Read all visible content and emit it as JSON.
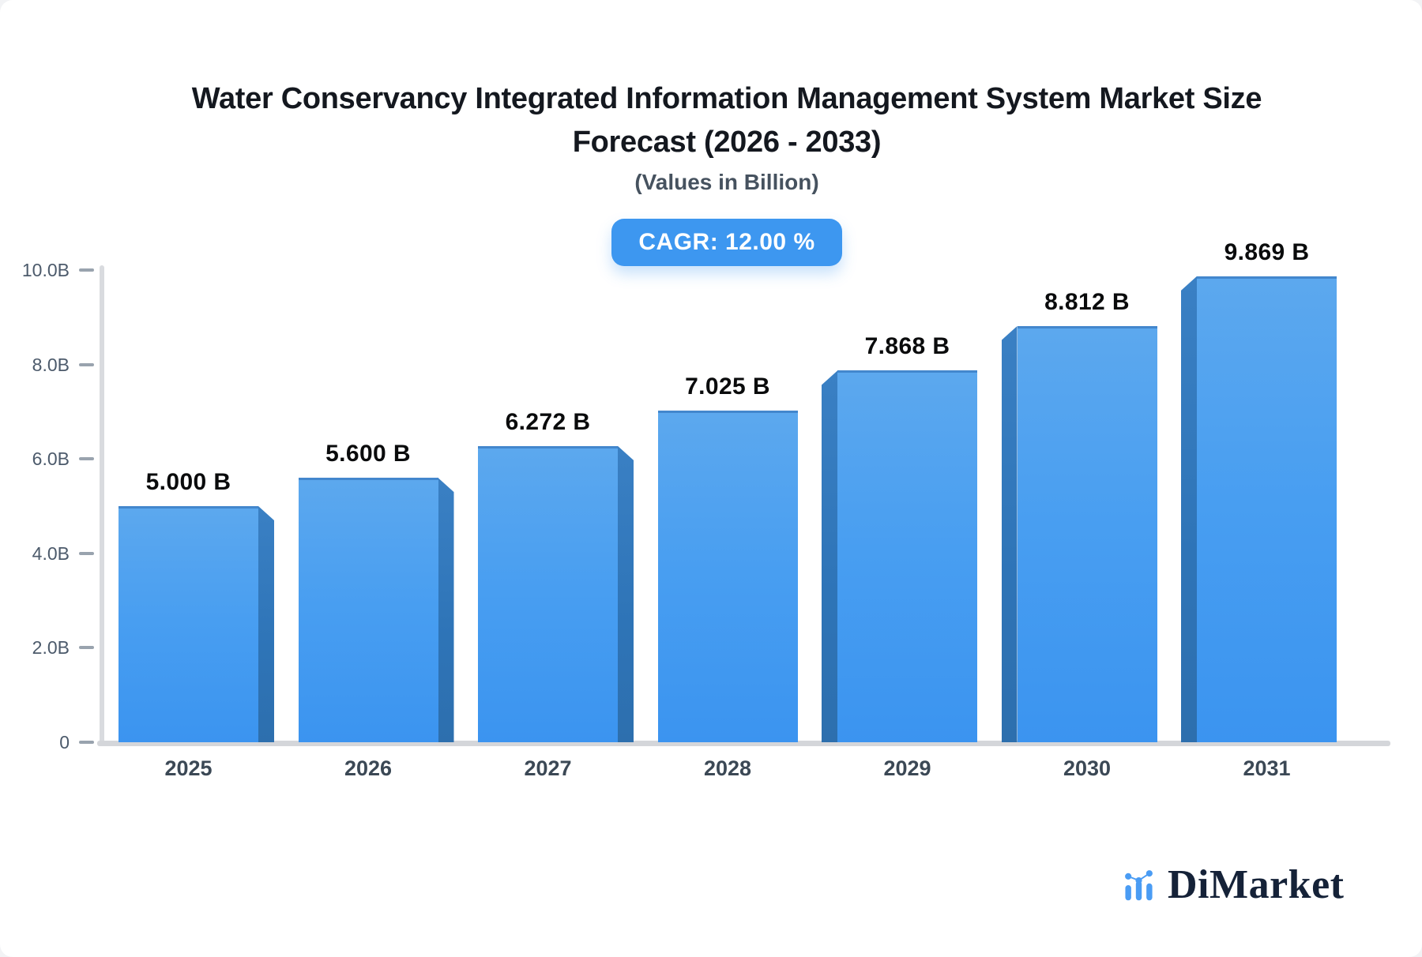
{
  "chart": {
    "title_lines": [
      "Water Conservancy Integrated Information Management System Market Size",
      "Forecast (2026 - 2033)"
    ],
    "subtitle": "(Values in Billion)",
    "cagr_label": "CAGR: 12.00 %",
    "badge_color": "#3d97f0"
  },
  "chart_data": {
    "type": "bar",
    "title": "Water Conservancy Integrated Information Management System Market Size Forecast (2026 - 2033)",
    "subtitle": "(Values in Billion)",
    "cagr": "12.00 %",
    "categories": [
      "2025",
      "2026",
      "2027",
      "2028",
      "2029",
      "2030",
      "2031"
    ],
    "values": [
      5.0,
      5.6,
      6.272,
      7.025,
      7.868,
      8.812,
      9.869
    ],
    "value_labels": [
      "5.000 B",
      "5.600 B",
      "6.272 B",
      "7.025 B",
      "7.868 B",
      "8.812 B",
      "9.869 B"
    ],
    "xlabel": "",
    "ylabel": "",
    "ylim": [
      0,
      10
    ],
    "yticks": [
      {
        "value": 0,
        "label": "0"
      },
      {
        "value": 2,
        "label": "2.0B"
      },
      {
        "value": 4,
        "label": "4.0B"
      },
      {
        "value": 6,
        "label": "6.0B"
      },
      {
        "value": 8,
        "label": "8.0B"
      },
      {
        "value": 10,
        "label": "10.0B"
      }
    ],
    "grid": false,
    "legend": false,
    "bar_color": "#459ef1",
    "bar_side_color": "#2e74b7",
    "bar_style": "3d"
  },
  "logo": {
    "text": "DiMarket",
    "icon": "bar-chart-trend-icon",
    "icon_color": "#4a9cf4",
    "text_color": "#152238"
  }
}
